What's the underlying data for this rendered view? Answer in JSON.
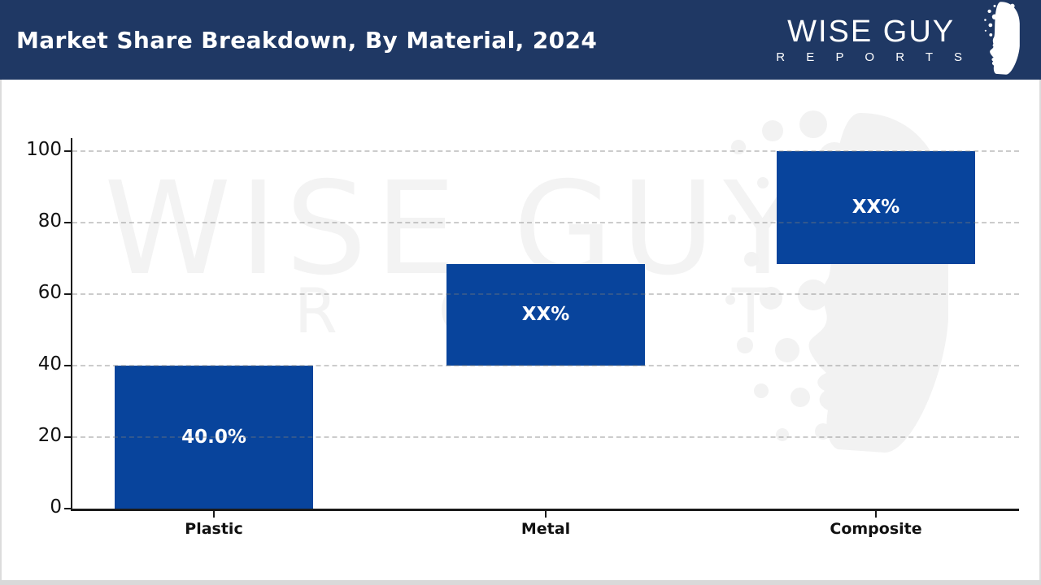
{
  "header": {
    "title": "Market Share Breakdown, By Material, 2024",
    "background": "#1f3864",
    "logo": {
      "primary": "WISE GUY",
      "secondary": "R E P O R T S"
    }
  },
  "watermark": {
    "primary": "WISE GUY",
    "secondary": "R O R T S"
  },
  "chart_data": {
    "type": "bar",
    "variant": "waterfall",
    "title": "Market Share Breakdown, By Material, 2024",
    "categories": [
      "Plastic",
      "Metal",
      "Composite"
    ],
    "segments": [
      {
        "category": "Plastic",
        "start": 0,
        "end": 40,
        "label": "40.0%"
      },
      {
        "category": "Metal",
        "start": 40,
        "end": 68.5,
        "label": "XX%"
      },
      {
        "category": "Composite",
        "start": 68.5,
        "end": 100,
        "label": "XX%"
      }
    ],
    "ylim": [
      0,
      100
    ],
    "yticks": [
      0,
      20,
      40,
      60,
      80,
      100
    ],
    "xlabel": "",
    "ylabel": "",
    "grid": "horizontal-dashed",
    "legend": "none",
    "bar_color": "#08449c",
    "bar_label_color": "#ffffff",
    "axis_color": "#1a1a1a",
    "gridline_color": "#d9d9d9"
  }
}
